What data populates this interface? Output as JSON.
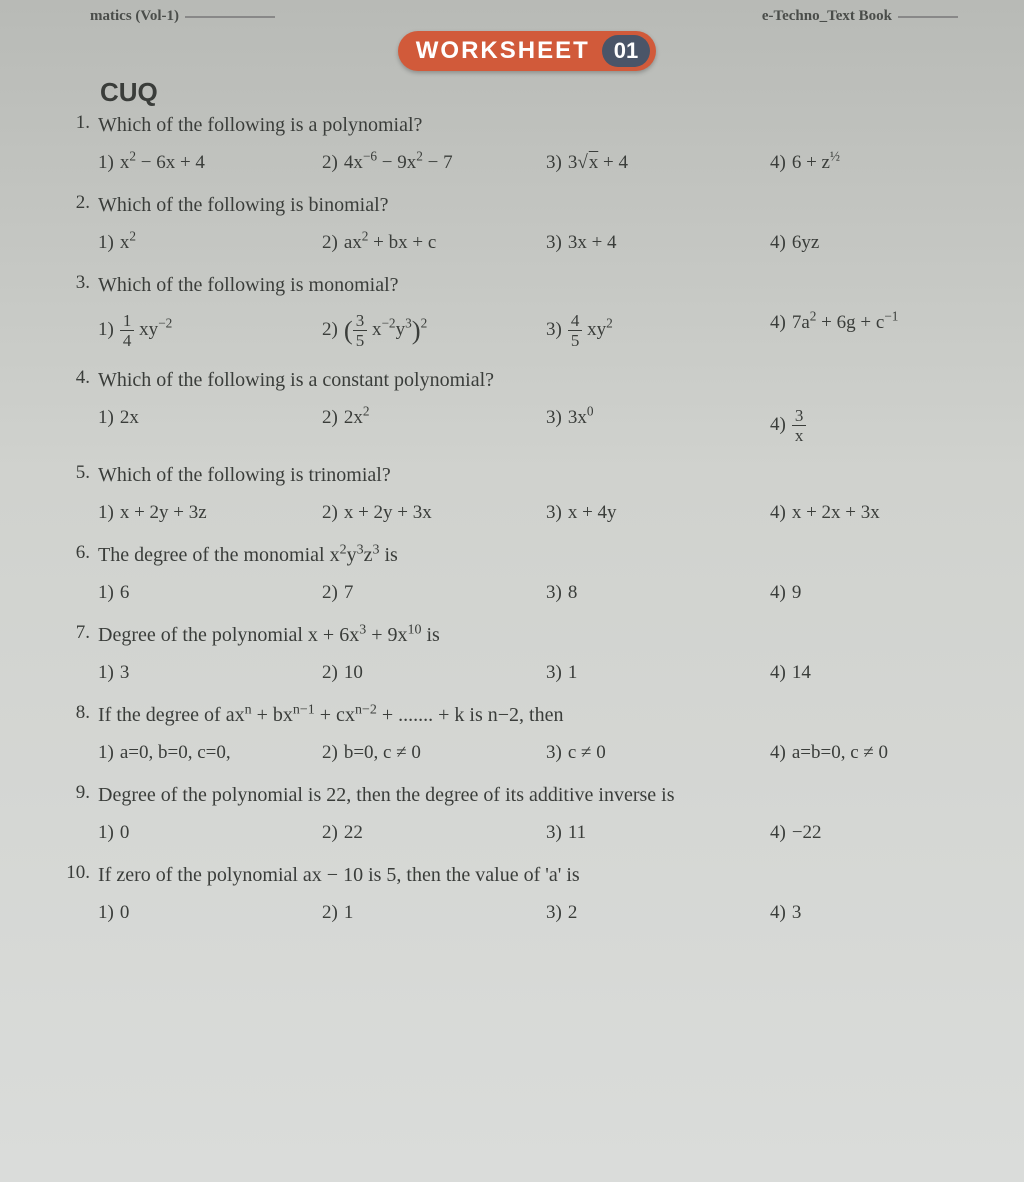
{
  "header": {
    "left": "matics (Vol-1)",
    "right": "e-Techno_Text Book"
  },
  "badge": {
    "label": "WORKSHEET",
    "number": "01"
  },
  "section_title": "CUQ",
  "questions": [
    {
      "num": "1.",
      "text": "Which of the following is a polynomial?",
      "options": [
        {
          "label": "1)",
          "html": "x<sup>2</sup> − 6x + 4"
        },
        {
          "label": "2)",
          "html": "4x<sup>−6</sup> − 9x<sup>2</sup> − 7"
        },
        {
          "label": "3)",
          "html": "3<span class='radical'></span><span class='sqrt'>x</span> + 4"
        },
        {
          "label": "4)",
          "html": "6 + z<sup>½</sup>"
        }
      ]
    },
    {
      "num": "2.",
      "text": "Which of the following is binomial?",
      "options": [
        {
          "label": "1)",
          "html": "x<sup>2</sup>"
        },
        {
          "label": "2)",
          "html": "ax<sup>2</sup> + bx + c"
        },
        {
          "label": "3)",
          "html": "3x + 4"
        },
        {
          "label": "4)",
          "html": "6yz"
        }
      ]
    },
    {
      "num": "3.",
      "text": "Which of the following is monomial?",
      "options": [
        {
          "label": "1)",
          "html": "<span class='frac'><span class='num'>1</span><span class='den'>4</span></span> xy<sup>−2</sup>"
        },
        {
          "label": "2)",
          "html": "<span class='bigparen'>(</span><span class='frac'><span class='num'>3</span><span class='den'>5</span></span> x<sup>−2</sup>y<sup>3</sup><span class='bigparen'>)</span><sup>2</sup>"
        },
        {
          "label": "3)",
          "html": "<span class='frac'><span class='num'>4</span><span class='den'>5</span></span> xy<sup>2</sup>"
        },
        {
          "label": "4)",
          "html": "7a<sup>2</sup> + 6g + c<sup>−1</sup>"
        }
      ]
    },
    {
      "num": "4.",
      "text": "Which of the following is a constant polynomial?",
      "options": [
        {
          "label": "1)",
          "html": "2x"
        },
        {
          "label": "2)",
          "html": "2x<sup>2</sup>"
        },
        {
          "label": "3)",
          "html": "3x<sup>0</sup>"
        },
        {
          "label": "4)",
          "html": "<span class='frac'><span class='num'>3</span><span class='den'>x</span></span>"
        }
      ]
    },
    {
      "num": "5.",
      "text": "Which of the following is trinomial?",
      "options": [
        {
          "label": "1)",
          "html": "x + 2y + 3z"
        },
        {
          "label": "2)",
          "html": "x + 2y + 3x"
        },
        {
          "label": "3)",
          "html": "x + 4y"
        },
        {
          "label": "4)",
          "html": "x + 2x + 3x"
        }
      ]
    },
    {
      "num": "6.",
      "text_html": "The degree of the monomial x<sup>2</sup>y<sup>3</sup>z<sup>3</sup> is",
      "options": [
        {
          "label": "1)",
          "html": "6"
        },
        {
          "label": "2)",
          "html": "7"
        },
        {
          "label": "3)",
          "html": "8"
        },
        {
          "label": "4)",
          "html": "9"
        }
      ]
    },
    {
      "num": "7.",
      "text_html": "Degree of the polynomial x + 6x<sup>3</sup> + 9x<sup>10</sup> is",
      "options": [
        {
          "label": "1)",
          "html": "3"
        },
        {
          "label": "2)",
          "html": "10"
        },
        {
          "label": "3)",
          "html": "1"
        },
        {
          "label": "4)",
          "html": "14"
        }
      ]
    },
    {
      "num": "8.",
      "text_html": "If the degree of ax<sup>n</sup> + bx<sup>n−1</sup> + cx<sup>n−2</sup> + ....... + k is n−2, then",
      "options": [
        {
          "label": "1)",
          "html": "a=0, b=0, c=0,"
        },
        {
          "label": "2)",
          "html": "b=0, c ≠ 0"
        },
        {
          "label": "3)",
          "html": "c ≠ 0"
        },
        {
          "label": "4)",
          "html": "a=b=0, c ≠ 0"
        }
      ]
    },
    {
      "num": "9.",
      "text": "Degree of the polynomial is 22, then the degree of its additive inverse is",
      "options": [
        {
          "label": "1)",
          "html": "0"
        },
        {
          "label": "2)",
          "html": "22"
        },
        {
          "label": "3)",
          "html": "11"
        },
        {
          "label": "4)",
          "html": "−22"
        }
      ]
    },
    {
      "num": "10.",
      "text": "If zero of the polynomial ax − 10 is 5, then the value of 'a' is",
      "options": [
        {
          "label": "1)",
          "html": "0"
        },
        {
          "label": "2)",
          "html": "1"
        },
        {
          "label": "3)",
          "html": "2"
        },
        {
          "label": "4)",
          "html": "3"
        }
      ]
    }
  ],
  "styling": {
    "page_bg": "#c5c8c5",
    "text_color": "#3a3d3a",
    "badge_bg": "#d15a3a",
    "badge_num_bg": "#4a5568",
    "badge_text_color": "#ffffff",
    "question_fontsize": 20,
    "option_fontsize": 19
  }
}
